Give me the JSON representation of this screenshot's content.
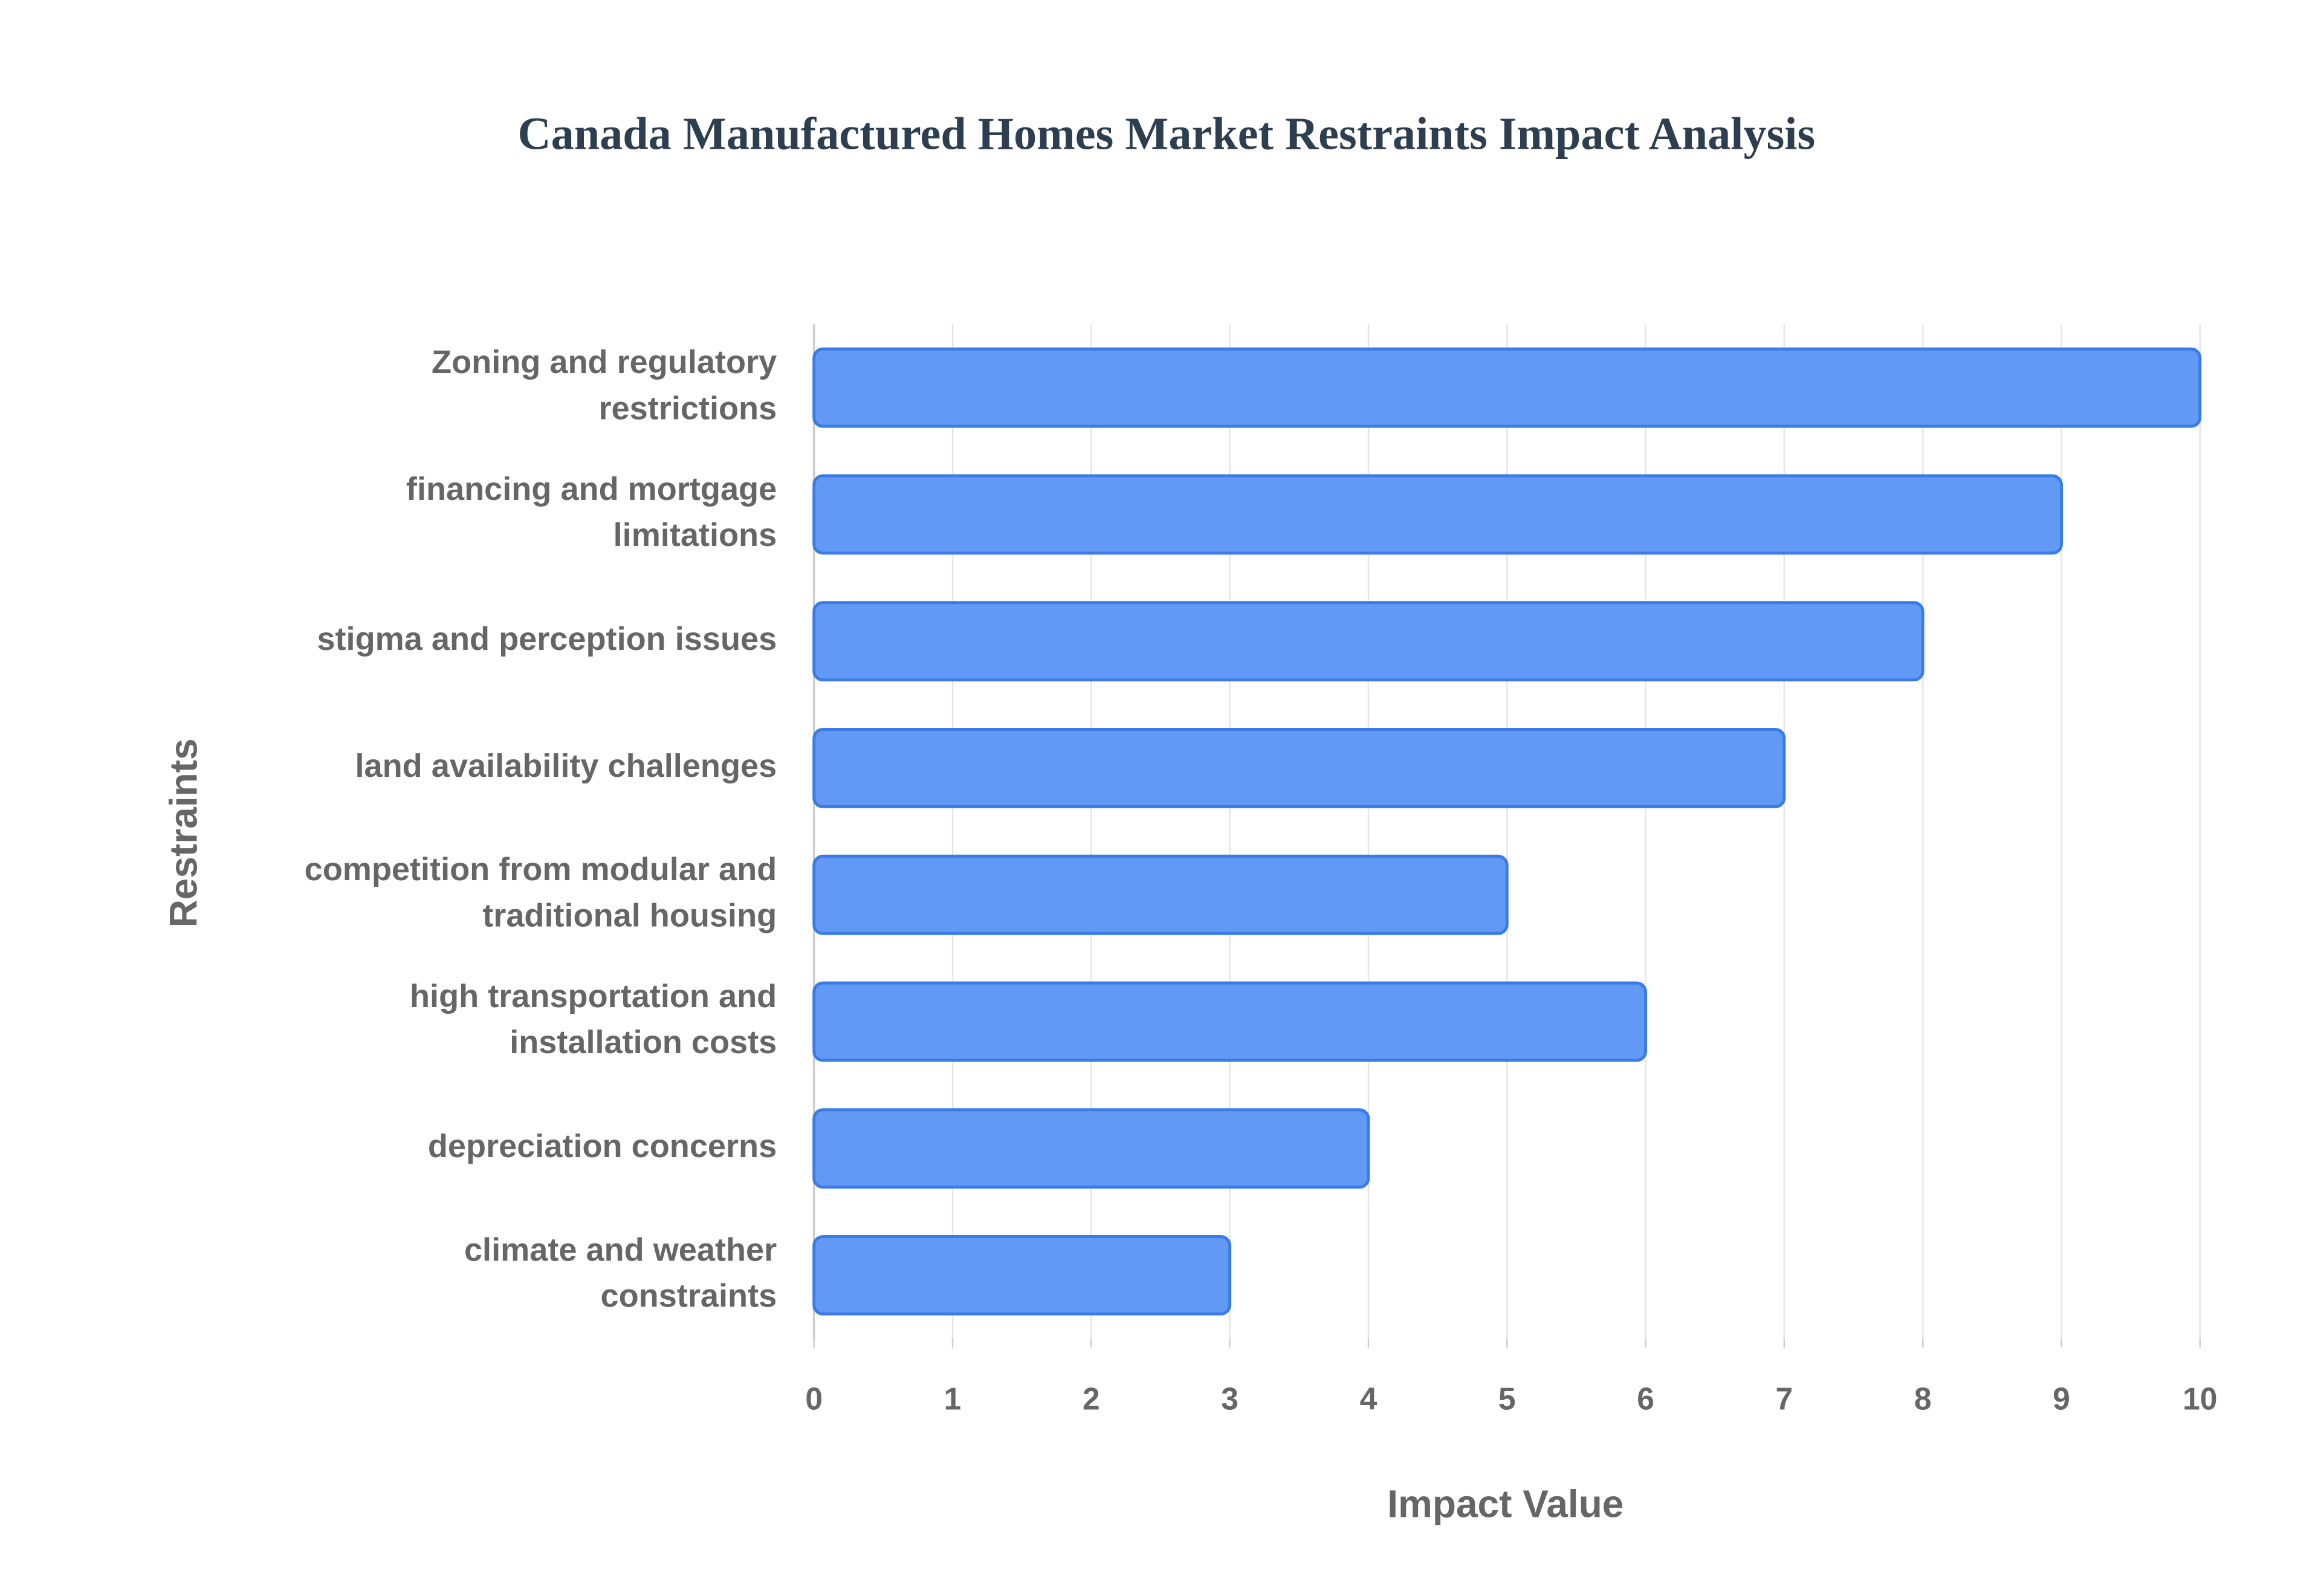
{
  "chart_data": {
    "type": "bar",
    "orientation": "horizontal",
    "title": "Canada Manufactured Homes Market Restraints Impact Analysis",
    "x_label": "Impact Value",
    "y_label": "Restraints",
    "categories": [
      "Zoning and regulatory restrictions",
      "financing and mortgage limitations",
      "stigma and perception issues",
      "land availability challenges",
      "competition from modular and traditional housing",
      "high transportation and installation costs",
      "depreciation concerns",
      "climate and weather constraints"
    ],
    "values": [
      10,
      9,
      8,
      7,
      5,
      6,
      4,
      3
    ],
    "color": "#6199f5",
    "edge_color": "#3b7be8",
    "xlim": [
      0,
      10
    ],
    "xticks": [
      0,
      1,
      2,
      3,
      4,
      5,
      6,
      7,
      8,
      9,
      10
    ],
    "grid": true
  }
}
